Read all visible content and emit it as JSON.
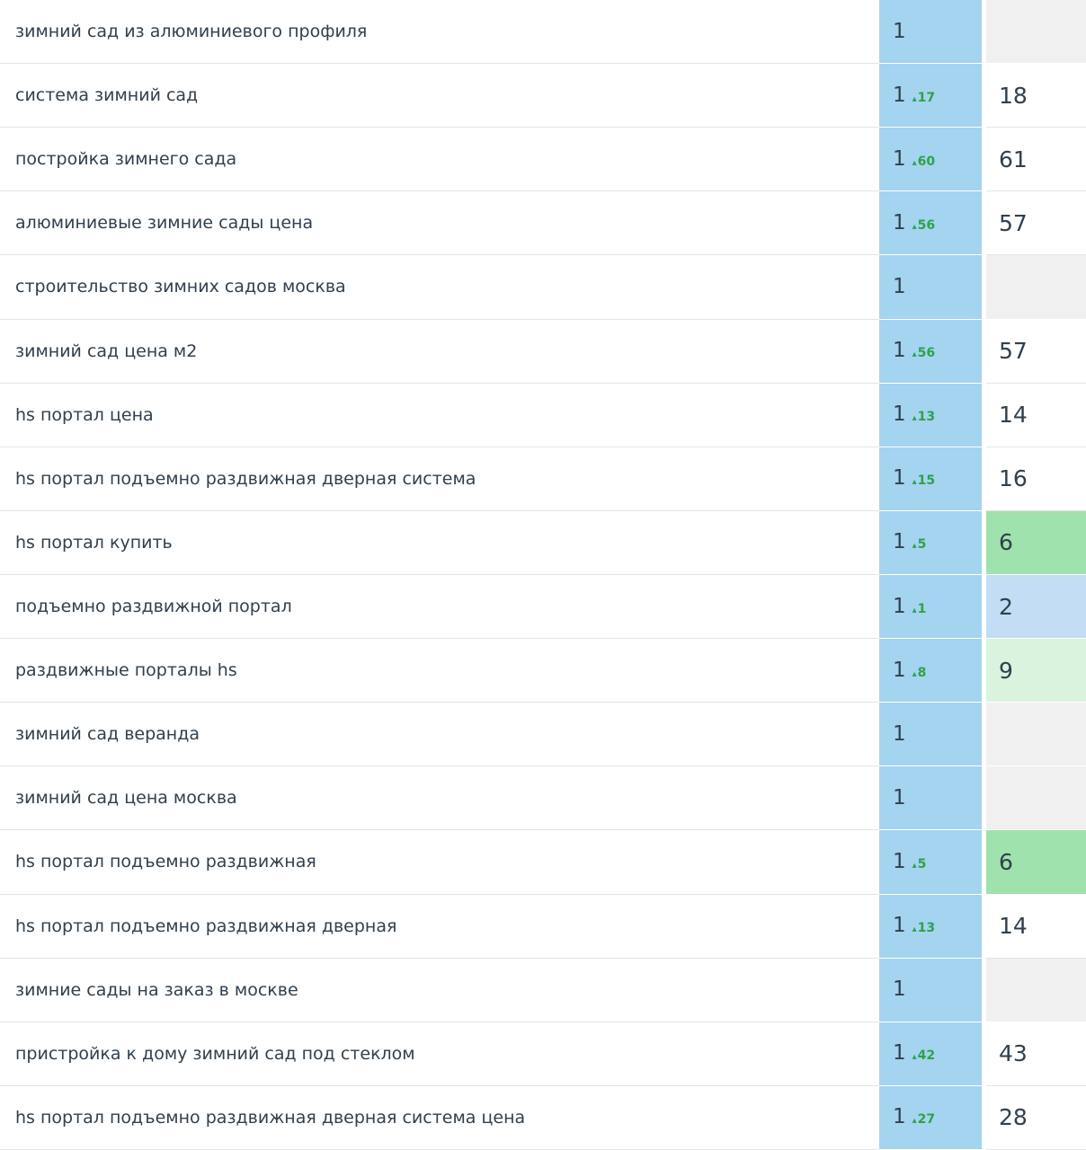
{
  "colors": {
    "text": "#31404d",
    "border": "#e4e4e4",
    "blue": "#a4d4ef",
    "green": "#2fa14a",
    "gray": "#f0f0f0",
    "pgreen": "#9fe2ad",
    "plgreen": "#d9f3de",
    "pblue": "#c2ddf4"
  },
  "icons": {
    "up_arrow": "▴"
  },
  "table": {
    "rows": [
      {
        "keyword": "зимний сад из алюминиевого профиля",
        "position": "1",
        "delta": null,
        "previous": null,
        "prev_style": "empty"
      },
      {
        "keyword": "система зимний сад",
        "position": "1",
        "delta": "17",
        "previous": "18",
        "prev_style": "default"
      },
      {
        "keyword": "постройка зимнего сада",
        "position": "1",
        "delta": "60",
        "previous": "61",
        "prev_style": "default"
      },
      {
        "keyword": "алюминиевые зимние сады цена",
        "position": "1",
        "delta": "56",
        "previous": "57",
        "prev_style": "default"
      },
      {
        "keyword": "строительство зимних садов москва",
        "position": "1",
        "delta": null,
        "previous": null,
        "prev_style": "empty"
      },
      {
        "keyword": "зимний сад цена м2",
        "position": "1",
        "delta": "56",
        "previous": "57",
        "prev_style": "default"
      },
      {
        "keyword": "hs портал цена",
        "position": "1",
        "delta": "13",
        "previous": "14",
        "prev_style": "default"
      },
      {
        "keyword": "hs портал подъемно раздвижная дверная система",
        "position": "1",
        "delta": "15",
        "previous": "16",
        "prev_style": "default"
      },
      {
        "keyword": "hs портал купить",
        "position": "1",
        "delta": "5",
        "previous": "6",
        "prev_style": "green"
      },
      {
        "keyword": "подъемно раздвижной портал",
        "position": "1",
        "delta": "1",
        "previous": "2",
        "prev_style": "blue"
      },
      {
        "keyword": "раздвижные порталы hs",
        "position": "1",
        "delta": "8",
        "previous": "9",
        "prev_style": "lightgreen"
      },
      {
        "keyword": "зимний сад веранда",
        "position": "1",
        "delta": null,
        "previous": null,
        "prev_style": "empty"
      },
      {
        "keyword": "зимний сад цена москва",
        "position": "1",
        "delta": null,
        "previous": null,
        "prev_style": "empty"
      },
      {
        "keyword": "hs портал подъемно раздвижная",
        "position": "1",
        "delta": "5",
        "previous": "6",
        "prev_style": "green"
      },
      {
        "keyword": "hs портал подъемно раздвижная дверная",
        "position": "1",
        "delta": "13",
        "previous": "14",
        "prev_style": "default"
      },
      {
        "keyword": "зимние сады на заказ в москве",
        "position": "1",
        "delta": null,
        "previous": null,
        "prev_style": "empty"
      },
      {
        "keyword": "пристройка к дому зимний сад под стеклом",
        "position": "1",
        "delta": "42",
        "previous": "43",
        "prev_style": "default"
      },
      {
        "keyword": "hs портал подъемно раздвижная дверная система цена",
        "position": "1",
        "delta": "27",
        "previous": "28",
        "prev_style": "default"
      }
    ]
  }
}
